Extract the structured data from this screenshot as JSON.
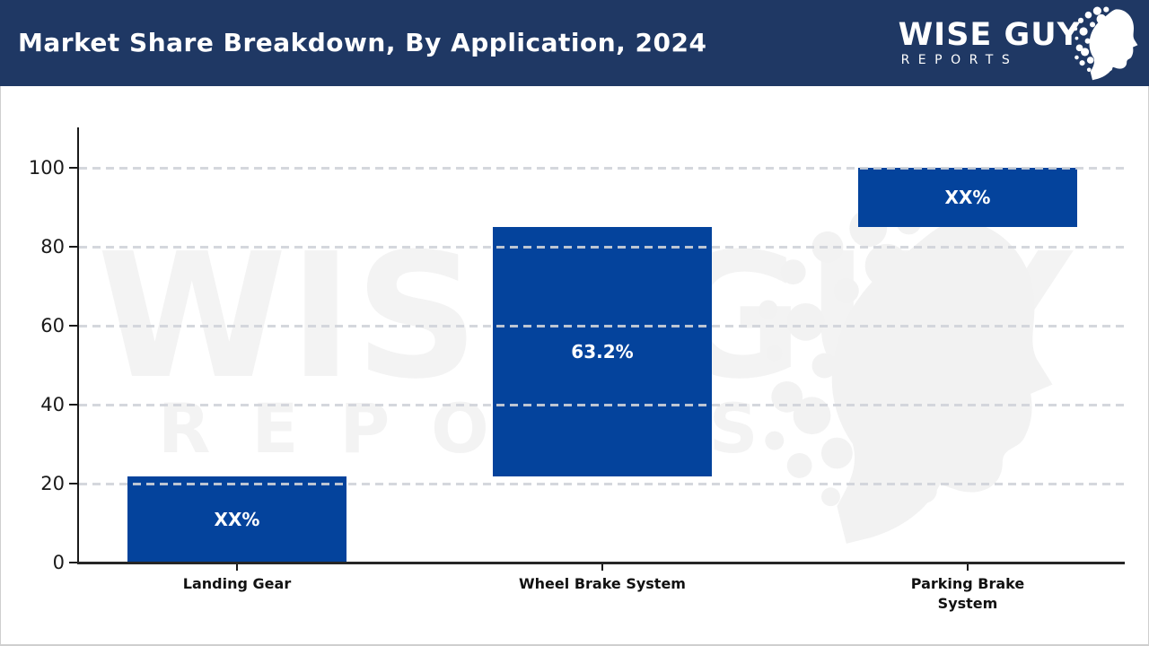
{
  "header": {
    "title": "Market Share Breakdown, By Application, 2024"
  },
  "brand": {
    "name_top": "WISE GUY",
    "name_bottom": "REPORTS"
  },
  "watermark": {
    "line1": "WISE GUY",
    "line2": "REPORTS"
  },
  "colors": {
    "header_bg": "#1f3864",
    "bar_blue": "#04439c",
    "title_text": "#ffffff",
    "axis_text": "#1a1a1a",
    "grid_gray": "#d0d3d9",
    "watermark_gray": "#f3f3f3"
  },
  "chart_data": {
    "type": "bar",
    "variant": "floating-waterfall",
    "title": "Market Share Breakdown, By Application, 2024",
    "categories": [
      "Landing Gear",
      "Wheel Brake System",
      "Parking Brake System"
    ],
    "bars": [
      {
        "category": "Landing Gear",
        "label": "XX%",
        "base": 0,
        "top": 21.8
      },
      {
        "category": "Wheel Brake System",
        "label": "63.2%",
        "base": 21.8,
        "top": 85
      },
      {
        "category": "Parking Brake System",
        "label": "XX%",
        "base": 85,
        "top": 100
      }
    ],
    "ylim": [
      0,
      100
    ],
    "yticks": [
      0,
      20,
      40,
      60,
      80,
      100
    ],
    "grid": "horizontal dashed, drawn above bars",
    "legend": "none",
    "bar_color": "#04439c"
  }
}
